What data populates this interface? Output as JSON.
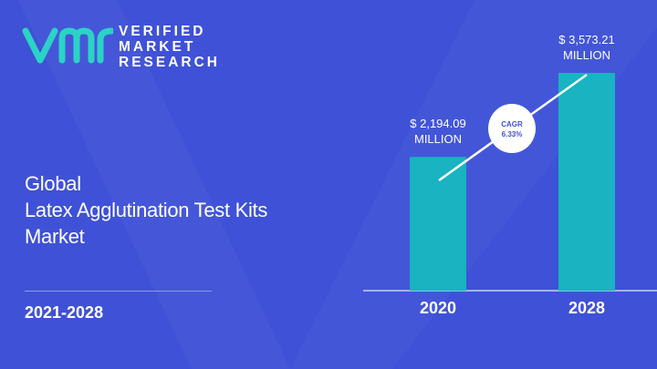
{
  "brand": {
    "line1": "VERIFIED",
    "line2": "MARKET",
    "line3": "RESEARCH",
    "logo_color": "#2bd3c6"
  },
  "title": {
    "line1": "Global",
    "line2": "Latex Agglutination Test Kits",
    "line3": "Market"
  },
  "period": "2021-2028",
  "colors": {
    "background": "#3f51d6",
    "bar": "#19b3c1",
    "text": "#ffffff"
  },
  "chart_data": {
    "type": "bar",
    "title": "",
    "xlabel": "",
    "ylabel": "",
    "categories": [
      "2020",
      "2028"
    ],
    "values": [
      2194.09,
      3573.21
    ],
    "value_labels": [
      [
        "$ 2,194.09",
        "MILLION"
      ],
      [
        "$ 3,573.21",
        "MILLION"
      ]
    ],
    "ylim": [
      0,
      3573.21
    ],
    "annotation": {
      "label": "CAGR",
      "value": "6.33%"
    },
    "grid": false,
    "legend": "none"
  }
}
